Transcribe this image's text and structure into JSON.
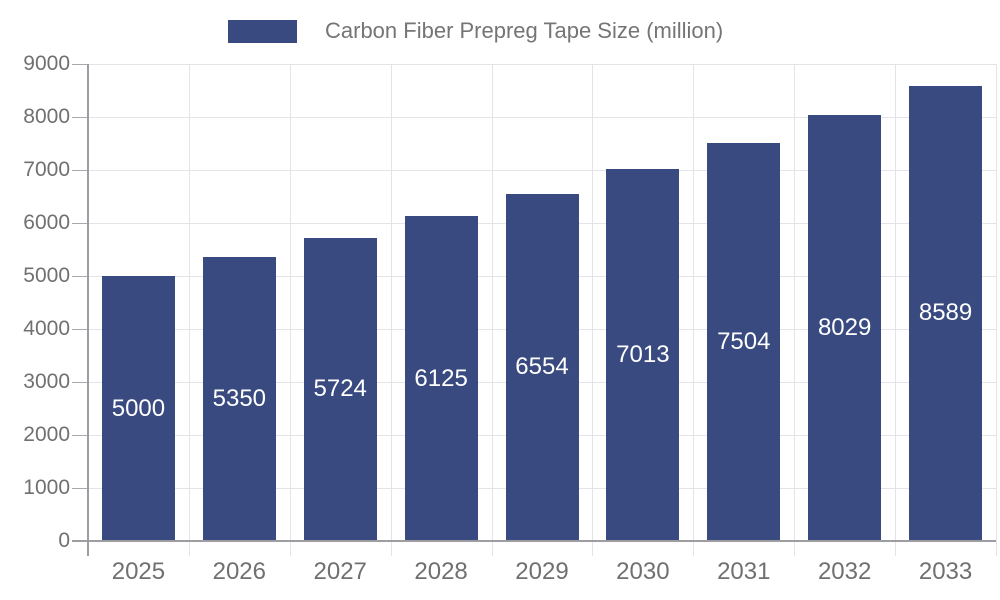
{
  "chart_data": {
    "type": "bar",
    "title": "",
    "legend": "Carbon Fiber Prepreg Tape Size (million)",
    "legend_position": "top",
    "categories": [
      "2025",
      "2026",
      "2027",
      "2028",
      "2029",
      "2030",
      "2031",
      "2032",
      "2033"
    ],
    "values": [
      5000,
      5350,
      5724,
      6125,
      6554,
      7013,
      7504,
      8029,
      8589
    ],
    "xlabel": "",
    "ylabel": "",
    "ylim": [
      0,
      9000
    ],
    "yticks": [
      0,
      1000,
      2000,
      3000,
      4000,
      5000,
      6000,
      7000,
      8000,
      9000
    ],
    "grid": true,
    "bar_labels_visible": true,
    "colors": {
      "bar": "#394A80",
      "bar_label": "#FFFFFF",
      "grid": "#E3E3E8",
      "axis": "#9C9CA1",
      "tick": "#A8A8AD",
      "axis_label": "#707070",
      "legend_text": "#757575",
      "background": "#FFFFFF"
    }
  }
}
